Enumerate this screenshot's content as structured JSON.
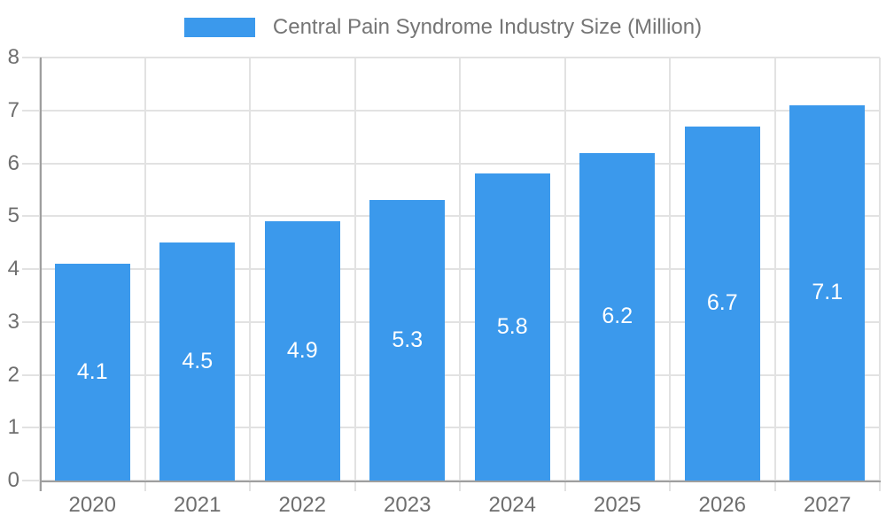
{
  "chart_data": {
    "type": "bar",
    "title": "Central Pain Syndrome Industry Size (Million)",
    "legend_entries": [
      "Central Pain Syndrome Industry Size (Million)"
    ],
    "legend_position": "top-center",
    "categories": [
      "2020",
      "2021",
      "2022",
      "2023",
      "2024",
      "2025",
      "2026",
      "2027"
    ],
    "values": [
      4.1,
      4.5,
      4.9,
      5.3,
      5.8,
      6.2,
      6.7,
      7.1
    ],
    "xlabel": "",
    "ylabel": "",
    "ylim": [
      0,
      8
    ],
    "yticks": [
      0,
      1,
      2,
      3,
      4,
      5,
      6,
      7,
      8
    ],
    "grid": true,
    "value_label_position": "inside-center",
    "colors": {
      "bar": "#3B99EC",
      "grid": "#E2E2E2",
      "axis": "#9E9E9E",
      "tick_text": "#6E6E6E",
      "legend_text": "#757575",
      "value_text": "#FFFFFF",
      "background": "#FFFFFF"
    }
  }
}
